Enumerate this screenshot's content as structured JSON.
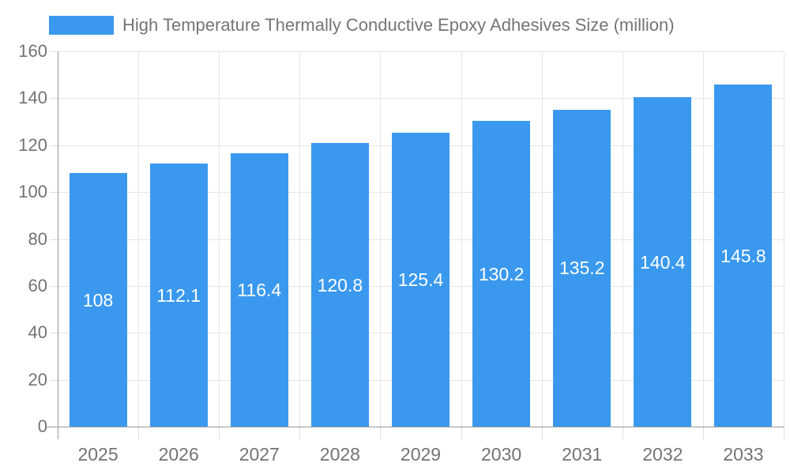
{
  "chart_data": {
    "type": "bar",
    "title": "High Temperature Thermally Conductive Epoxy Adhesives Size (million)",
    "categories": [
      "2025",
      "2026",
      "2027",
      "2028",
      "2029",
      "2030",
      "2031",
      "2032",
      "2033"
    ],
    "values": [
      108,
      112.1,
      116.4,
      120.8,
      125.4,
      130.2,
      135.2,
      140.4,
      145.8
    ],
    "value_labels": [
      "108",
      "112.1",
      "116.4",
      "120.8",
      "125.4",
      "130.2",
      "135.2",
      "140.4",
      "145.8"
    ],
    "xlabel": "",
    "ylabel": "",
    "ylim": [
      0,
      160
    ],
    "yticks": [
      0,
      20,
      40,
      60,
      80,
      100,
      120,
      140,
      160
    ],
    "grid": "on",
    "legend_position": "top-left",
    "colors": {
      "bar": "#3a99ee",
      "gridline": "#e6e6e6",
      "tick": "#dddddd",
      "axis": "#9a9a9a",
      "axis_text": "#737373",
      "legend_text": "#757575",
      "value_text": "#ffffff",
      "background": "#ffffff"
    }
  }
}
